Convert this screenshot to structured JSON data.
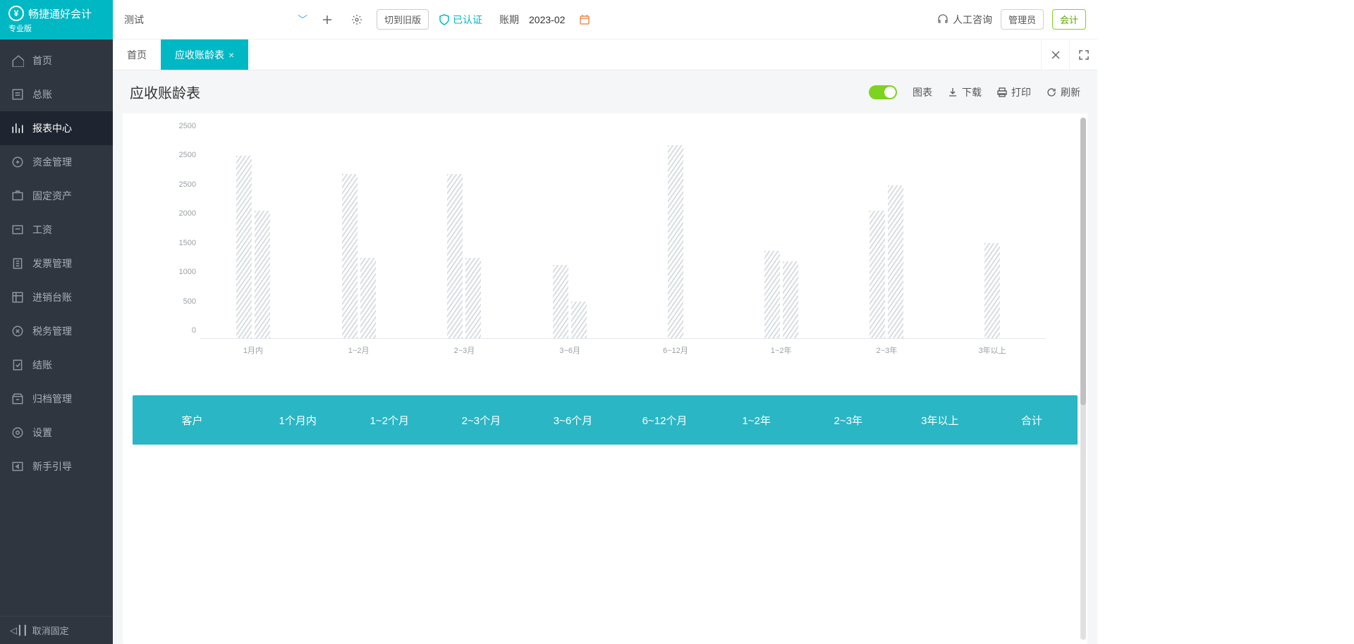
{
  "brand": {
    "name": "畅捷通好会计",
    "edition": "专业版",
    "glyph": "¥"
  },
  "sidebar": {
    "items": [
      {
        "label": "首页",
        "icon": "home"
      },
      {
        "label": "总账",
        "icon": "ledger"
      },
      {
        "label": "报表中心",
        "icon": "report",
        "active": true
      },
      {
        "label": "资金管理",
        "icon": "fund"
      },
      {
        "label": "固定资产",
        "icon": "asset"
      },
      {
        "label": "工资",
        "icon": "salary"
      },
      {
        "label": "发票管理",
        "icon": "invoice"
      },
      {
        "label": "进销台账",
        "icon": "psi"
      },
      {
        "label": "税务管理",
        "icon": "tax"
      },
      {
        "label": "结账",
        "icon": "close-book"
      },
      {
        "label": "归档管理",
        "icon": "archive"
      },
      {
        "label": "设置",
        "icon": "settings"
      },
      {
        "label": "新手引导",
        "icon": "guide"
      }
    ],
    "footer": "取消固定"
  },
  "topbar": {
    "company": "测试",
    "switch_old": "切到旧版",
    "verified": "已认证",
    "period_label": "账期",
    "period_value": "2023-02",
    "consult": "人工咨询",
    "role_admin": "管理员",
    "role_acc": "会计"
  },
  "tabs": {
    "home": "首页",
    "active": "应收账龄表"
  },
  "page": {
    "title": "应收账龄表",
    "act_chart": "图表",
    "act_download": "下载",
    "act_print": "打印",
    "act_refresh": "刷新"
  },
  "chart": {
    "type": "bar",
    "y_ticks": [
      0,
      500,
      1000,
      1500,
      2000,
      2500,
      2500,
      2500
    ],
    "y_max": 2800,
    "categories": [
      "1月内",
      "1~2月",
      "2~3月",
      "3~6月",
      "6~12月",
      "1~2年",
      "2~3年",
      "3年以上"
    ],
    "series": [
      [
        2500,
        2250,
        2250,
        1000,
        2650,
        1200,
        1750,
        1300
      ],
      [
        1750,
        1100,
        1100,
        500,
        0,
        1050,
        2100,
        0
      ]
    ],
    "bar_fill": "#d8dde3",
    "text_color": "#9aa0a6",
    "bg": "#ffffff"
  },
  "table": {
    "header_bg": "#2ab6c4",
    "columns": [
      "客户",
      "1个月内",
      "1~2个月",
      "2~3个月",
      "3~6个月",
      "6~12个月",
      "1~2年",
      "2~3年",
      "3年以上",
      "合计"
    ]
  }
}
